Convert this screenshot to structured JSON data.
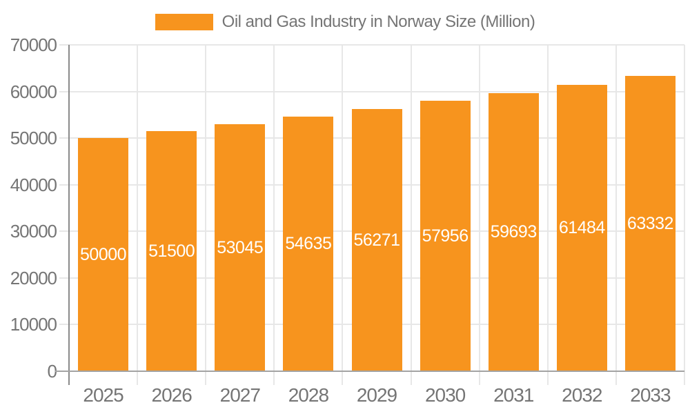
{
  "chart_data": {
    "type": "bar",
    "title": "Oil and Gas Industry in Norway Size (Million)",
    "legend": {
      "position": "top",
      "entries": [
        {
          "label": "Oil and Gas Industry in Norway Size (Million)",
          "color": "#F7941E"
        }
      ]
    },
    "categories": [
      "2025",
      "2026",
      "2027",
      "2028",
      "2029",
      "2030",
      "2031",
      "2032",
      "2033"
    ],
    "values": [
      50000,
      51500,
      53045,
      54635,
      56271,
      57956,
      59693,
      61484,
      63332
    ],
    "xlabel": "",
    "ylabel": "",
    "ylim": [
      0,
      70000
    ],
    "yticks": [
      0,
      10000,
      20000,
      30000,
      40000,
      50000,
      60000,
      70000
    ],
    "grid": true,
    "bar_value_labels_visible": true,
    "colors": {
      "bar": "#F7941E",
      "bar_label_text": "#FFFFFF",
      "grid_line": "#E7E7E7",
      "y_axis_line": "#8A8A8A",
      "x_axis_line": "#A3A3A3",
      "tick_text": "#757575",
      "legend_text": "#757575",
      "background": "#FFFFFF"
    }
  }
}
